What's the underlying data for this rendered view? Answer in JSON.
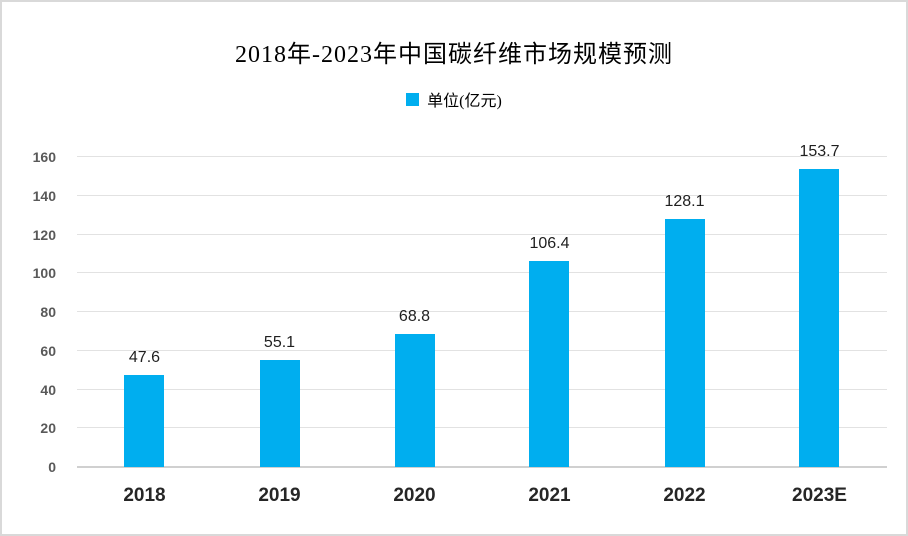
{
  "page": {
    "background_color": "#ffffff",
    "border_color": "#d9d9d9"
  },
  "title": "2018年-2023年中国碳纤维市场规模预测",
  "legend": {
    "label": "单位(亿元)",
    "swatch_color": "#00AEEF"
  },
  "chart_data": {
    "type": "bar",
    "title": "2018年-2023年中国碳纤维市场规模预测",
    "categories": [
      "2018",
      "2019",
      "2020",
      "2021",
      "2022",
      "2023E"
    ],
    "values": [
      47.6,
      55.1,
      68.8,
      106.4,
      128.1,
      153.7
    ],
    "series_name": "单位(亿元)",
    "xlabel": "",
    "ylabel": "",
    "ylim": [
      0,
      160
    ],
    "yticks": [
      0,
      20,
      40,
      60,
      80,
      100,
      120,
      140,
      160
    ],
    "grid": true,
    "legend_position": "top",
    "bar_color": "#00AEEF",
    "gridline_color": "#e2e2e2",
    "tick_label_color": "#595959",
    "value_label_color": "#1f1f1f"
  }
}
